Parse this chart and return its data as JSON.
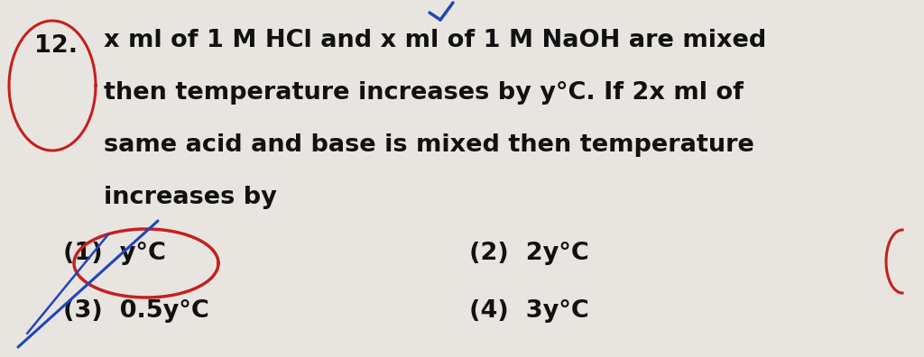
{
  "question_number": "12.",
  "q_line1": "x ml of 1 M HCl and x ml of 1 M NaOH are mixed",
  "q_line2": "then temperature increases by y°C. If 2x ml of",
  "q_line3": "same acid and base is mixed then temperature",
  "q_line4": "increases by",
  "opt1": "(1)  y°C",
  "opt2": "(2)  2y°C",
  "opt3": "(3)  0.5y°C",
  "opt4": "(4)  3y°C",
  "bg_color": "#e8e5e0",
  "text_color": "#111111",
  "red_color": "#c42020",
  "blue_color": "#2244bb",
  "font_size": 19.5
}
